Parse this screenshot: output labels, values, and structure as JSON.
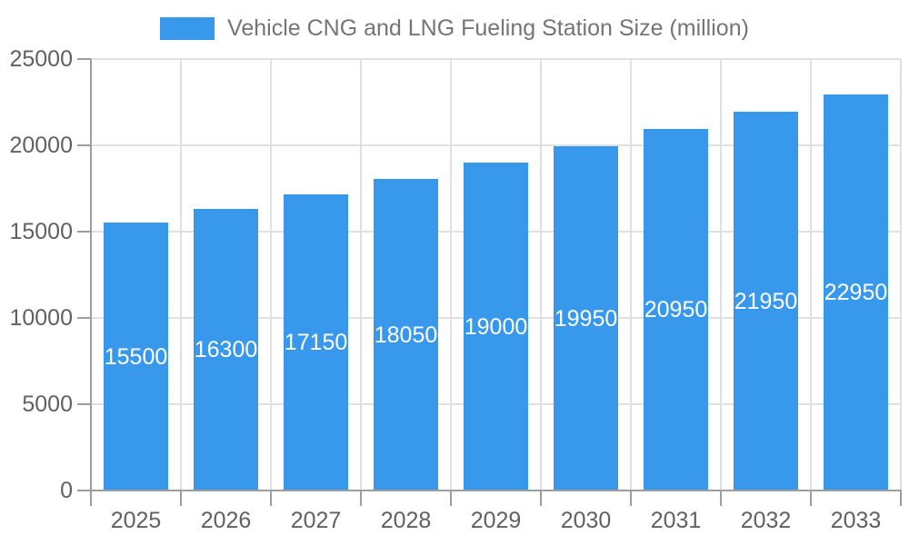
{
  "chart_data": {
    "type": "bar",
    "title": "Vehicle CNG and LNG Fueling Station Size (million)",
    "categories": [
      "2025",
      "2026",
      "2027",
      "2028",
      "2029",
      "2030",
      "2031",
      "2032",
      "2033"
    ],
    "series": [
      {
        "name": "Vehicle CNG and LNG Fueling Station Size (million)",
        "values": [
          15500,
          16300,
          17150,
          18050,
          19000,
          19950,
          20950,
          21950,
          22950
        ]
      }
    ],
    "bar_labels": [
      "15500",
      "16300",
      "17150",
      "18050",
      "19000",
      "19950",
      "20950",
      "21950",
      "22950"
    ],
    "xlabel": "",
    "ylabel": "",
    "ylim": [
      0,
      25000
    ],
    "y_ticks": [
      0,
      5000,
      10000,
      15000,
      20000,
      25000
    ],
    "y_tick_labels": [
      "0",
      "5000",
      "10000",
      "15000",
      "20000",
      "25000"
    ],
    "grid": true,
    "legend_position": "top",
    "colors": {
      "bar": "#3899ec",
      "bar_label": "#ffffff",
      "title_text": "#757575",
      "axis_text": "#616161",
      "gridline": "#e0e0e0",
      "axis_line": "#9e9e9e",
      "background": "#ffffff"
    }
  }
}
